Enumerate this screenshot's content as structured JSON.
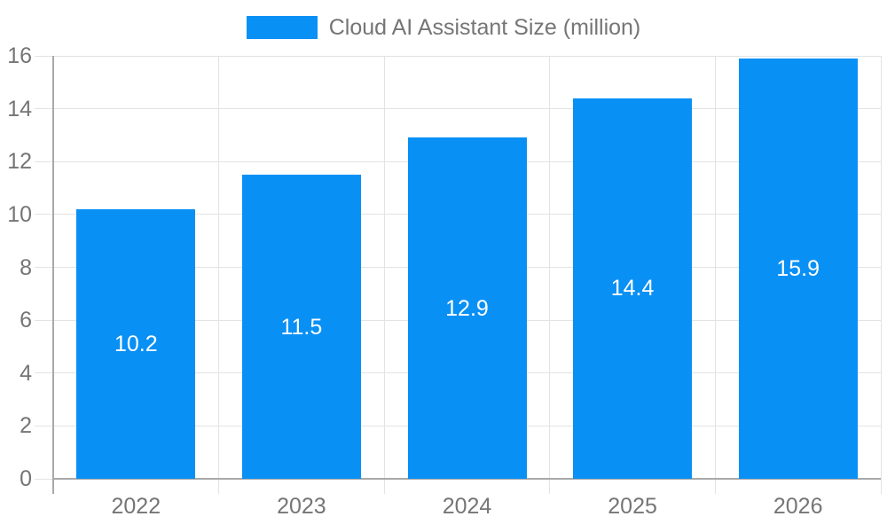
{
  "legend": {
    "label": "Cloud AI Assistant Size (million)"
  },
  "colors": {
    "bar": "#0990F5",
    "axis_label_text": "#757575",
    "legend_text": "#757575",
    "grid": "#E3E3E3",
    "axis_line": "#A9A9A9",
    "value_label_text": "#FFFFFF",
    "background": "#FFFFFF"
  },
  "chart_data": {
    "type": "bar",
    "title": "Cloud AI Assistant Size (million)",
    "categories": [
      "2022",
      "2023",
      "2024",
      "2025",
      "2026"
    ],
    "series": [
      {
        "name": "Cloud AI Assistant Size (million)",
        "values": [
          10.2,
          11.5,
          12.9,
          14.4,
          15.9
        ]
      }
    ],
    "value_labels": [
      "10.2",
      "11.5",
      "12.9",
      "14.4",
      "15.9"
    ],
    "xlabel": "",
    "ylabel": "",
    "ylim": [
      0,
      16
    ],
    "yticks": [
      0,
      2,
      4,
      6,
      8,
      10,
      12,
      14,
      16
    ],
    "grid": true,
    "legend_position": "top"
  }
}
